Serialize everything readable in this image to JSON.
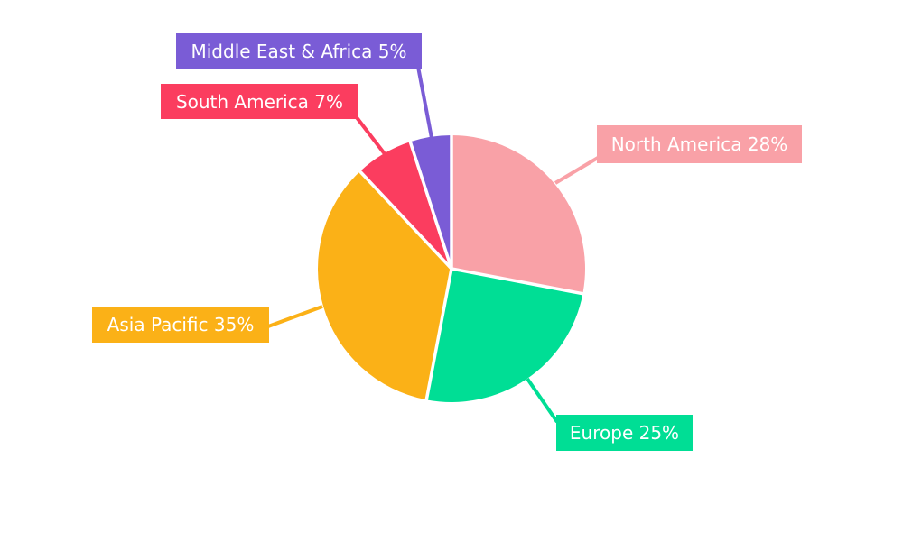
{
  "chart_data": {
    "type": "pie",
    "title": "",
    "categories": [
      "North America",
      "Europe",
      "Asia Pacific",
      "South America",
      "Middle East & Africa"
    ],
    "values": [
      28,
      25,
      35,
      7,
      5
    ],
    "unit": "%",
    "start_angle": "top",
    "direction": "clockwise",
    "background": "#FFFFFF",
    "separator": {
      "color": "#FFFFFF",
      "width": 3.5
    },
    "label_text_color": "#FFFFFF",
    "slices": [
      {
        "label": "North America",
        "value": 28,
        "display": "North America 28%",
        "color": "#F9A1A7"
      },
      {
        "label": "Europe",
        "value": 25,
        "display": "Europe 25%",
        "color": "#00DE95"
      },
      {
        "label": "Asia Pacific",
        "value": 35,
        "display": "Asia Pacific 35%",
        "color": "#FBB117"
      },
      {
        "label": "South America",
        "value": 7,
        "display": "South America 7%",
        "color": "#FB3D5F"
      },
      {
        "label": "Middle East & Africa",
        "value": 5,
        "display": "Middle East & Africa 5%",
        "color": "#7A5CD6"
      }
    ]
  }
}
